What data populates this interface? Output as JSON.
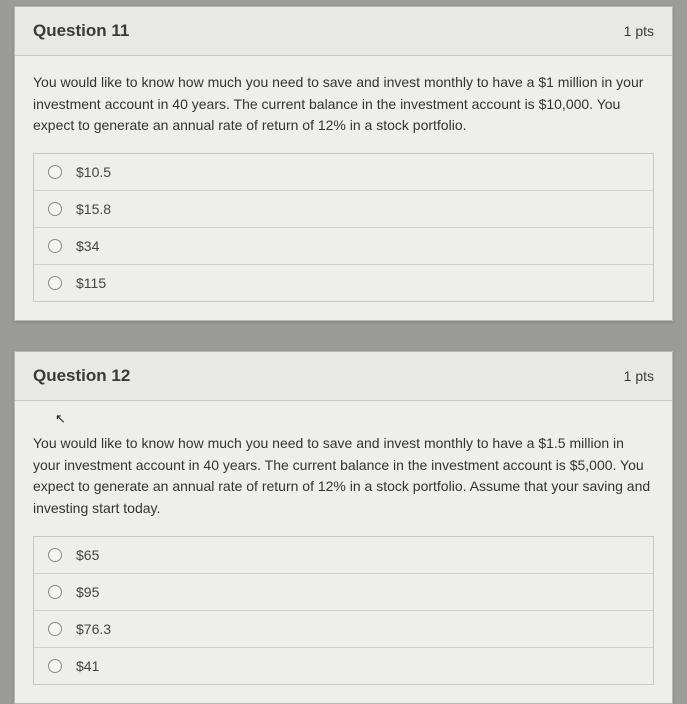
{
  "questions": [
    {
      "title": "Question 11",
      "points": "1 pts",
      "text": "You would like to know how much you need to save and invest monthly to have a $1 million in your investment account in 40 years. The current balance in the investment account is $10,000. You expect to generate an annual rate of return of 12% in a stock portfolio.",
      "show_cursor": false,
      "options": [
        "$10.5",
        "$15.8",
        "$34",
        "$115"
      ]
    },
    {
      "title": "Question 12",
      "points": "1 pts",
      "text": "You would like to know how much you need to save and invest monthly to have a $1.5 million in your investment account in 40 years. The current balance in the investment account is $5,000. You expect to generate an annual rate of return of 12% in a stock portfolio. Assume that your saving and investing start today.",
      "show_cursor": true,
      "options": [
        "$65",
        "$95",
        "$76.3",
        "$41"
      ]
    }
  ],
  "styling": {
    "page_background": "#9b9b99",
    "card_background": "#eeeeec",
    "header_background": "#e8e8e6",
    "border_color": "#c7c7c5",
    "text_color": "#333",
    "title_fontsize": 17,
    "body_fontsize": 14,
    "radio_border": "#8a8a88"
  }
}
